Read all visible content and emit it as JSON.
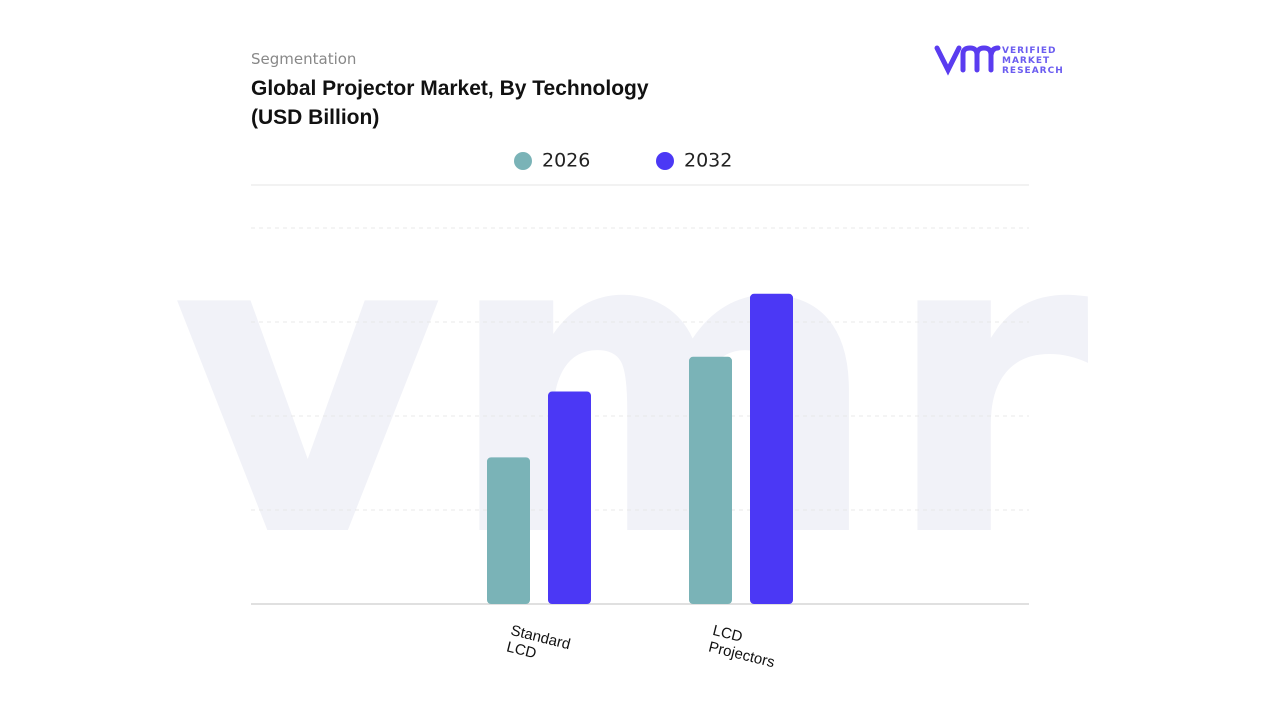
{
  "brand": {
    "name": [
      "VERIFIED",
      "MARKET",
      "RESEARCH"
    ]
  },
  "chart_data": {
    "type": "bar",
    "subtitle": "Segmentation",
    "title": "Global Projector Market, By Technology (USD Billion)",
    "categories": [
      "Standard LCD",
      "LCD Projectors"
    ],
    "series": [
      {
        "name": "2026",
        "color": "#7ab3b7",
        "values": [
          1.56,
          2.63
        ]
      },
      {
        "name": "2032",
        "color": "#4b38f5",
        "values": [
          2.26,
          3.3
        ]
      }
    ],
    "ylim": [
      0,
      4
    ],
    "yticks": [
      0,
      1,
      2,
      3,
      4
    ],
    "grid": true,
    "legend": "top"
  }
}
